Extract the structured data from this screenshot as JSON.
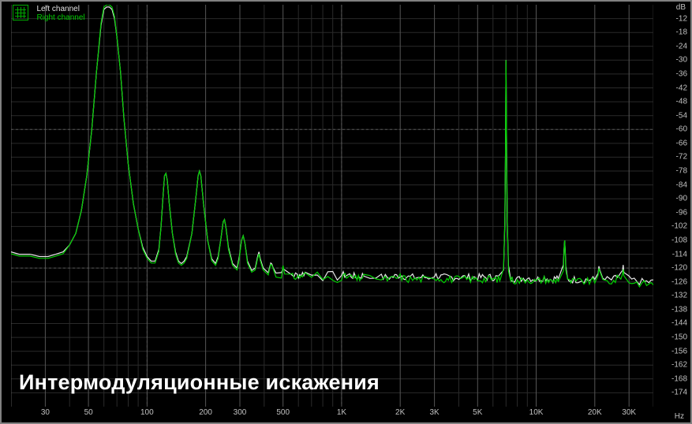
{
  "chart": {
    "type": "spectrum-line",
    "title_caption": "Интермодуляционные искажения",
    "background_color": "#000000",
    "border_color": "#808080",
    "grid_color_major": "#555555",
    "grid_color_minor": "#2a2a2a",
    "text_color": "#c0c0c0",
    "xaxis": {
      "unit": "Hz",
      "scale": "log",
      "min_hz": 20,
      "max_hz": 40000,
      "major_ticks": [
        20,
        30,
        50,
        100,
        200,
        300,
        500,
        1000,
        2000,
        3000,
        5000,
        10000,
        20000,
        30000
      ],
      "tick_labels": [
        "",
        "30",
        "50",
        "100",
        "200",
        "300",
        "500",
        "1K",
        "2K",
        "3K",
        "5K",
        "10K",
        "20K",
        "30K"
      ]
    },
    "yaxis": {
      "unit": "dB",
      "scale": "linear",
      "min_db": -180,
      "max_db": -6,
      "ticks": [
        -12,
        -18,
        -24,
        -30,
        -36,
        -42,
        -48,
        -54,
        -60,
        -66,
        -72,
        -78,
        -84,
        -90,
        -96,
        -102,
        -108,
        -114,
        -120,
        -126,
        -132,
        -138,
        -144,
        -150,
        -156,
        -162,
        -168,
        -174
      ]
    },
    "legend": {
      "left_label": "Left channel",
      "left_color": "#e0e0e0",
      "right_label": "Right channel",
      "right_color": "#00cc00"
    },
    "series": {
      "left_channel_color": "#e8e8e8",
      "right_channel_color": "#00d000",
      "line_width": 1.2,
      "points": [
        [
          20,
          -113
        ],
        [
          22,
          -114
        ],
        [
          25,
          -114
        ],
        [
          28,
          -115
        ],
        [
          31,
          -115
        ],
        [
          34,
          -114
        ],
        [
          37,
          -113
        ],
        [
          40,
          -110
        ],
        [
          43,
          -105
        ],
        [
          46,
          -95
        ],
        [
          49,
          -80
        ],
        [
          52,
          -60
        ],
        [
          55,
          -35
        ],
        [
          58,
          -15
        ],
        [
          60,
          -8
        ],
        [
          62,
          -7
        ],
        [
          64,
          -7
        ],
        [
          66,
          -8
        ],
        [
          68,
          -12
        ],
        [
          70,
          -20
        ],
        [
          73,
          -35
        ],
        [
          76,
          -55
        ],
        [
          80,
          -75
        ],
        [
          85,
          -92
        ],
        [
          90,
          -103
        ],
        [
          95,
          -111
        ],
        [
          100,
          -115
        ],
        [
          105,
          -117
        ],
        [
          110,
          -117
        ],
        [
          115,
          -112
        ],
        [
          118,
          -102
        ],
        [
          121,
          -88
        ],
        [
          123,
          -80
        ],
        [
          125,
          -79
        ],
        [
          127,
          -82
        ],
        [
          130,
          -92
        ],
        [
          135,
          -105
        ],
        [
          140,
          -113
        ],
        [
          145,
          -117
        ],
        [
          150,
          -118
        ],
        [
          155,
          -117
        ],
        [
          160,
          -115
        ],
        [
          170,
          -105
        ],
        [
          178,
          -90
        ],
        [
          183,
          -80
        ],
        [
          186,
          -78
        ],
        [
          189,
          -80
        ],
        [
          195,
          -92
        ],
        [
          205,
          -108
        ],
        [
          215,
          -116
        ],
        [
          225,
          -118
        ],
        [
          232,
          -115
        ],
        [
          240,
          -107
        ],
        [
          246,
          -100
        ],
        [
          250,
          -99
        ],
        [
          254,
          -102
        ],
        [
          262,
          -111
        ],
        [
          275,
          -118
        ],
        [
          290,
          -120
        ],
        [
          298,
          -115
        ],
        [
          306,
          -108
        ],
        [
          312,
          -106
        ],
        [
          318,
          -109
        ],
        [
          328,
          -117
        ],
        [
          345,
          -121
        ],
        [
          360,
          -120
        ],
        [
          370,
          -115
        ],
        [
          376,
          -113
        ],
        [
          382,
          -116
        ],
        [
          395,
          -120
        ],
        [
          420,
          -122
        ],
        [
          432,
          -118
        ],
        [
          438,
          -117
        ],
        [
          444,
          -119
        ],
        [
          460,
          -122
        ],
        [
          490,
          -122
        ],
        [
          500,
          -119
        ],
        [
          510,
          -122
        ],
        [
          550,
          -123
        ],
        [
          600,
          -123
        ],
        [
          650,
          -122
        ],
        [
          700,
          -123
        ],
        [
          750,
          -122
        ],
        [
          800,
          -124
        ],
        [
          850,
          -123
        ],
        [
          900,
          -123
        ],
        [
          950,
          -124
        ],
        [
          1000,
          -123
        ],
        [
          1100,
          -123
        ],
        [
          1200,
          -124
        ],
        [
          1300,
          -123
        ],
        [
          1400,
          -124
        ],
        [
          1500,
          -123
        ],
        [
          1600,
          -124
        ],
        [
          1800,
          -124
        ],
        [
          2000,
          -123
        ],
        [
          2200,
          -124
        ],
        [
          2500,
          -124
        ],
        [
          2800,
          -124
        ],
        [
          3000,
          -123
        ],
        [
          3300,
          -124
        ],
        [
          3600,
          -124
        ],
        [
          4000,
          -124
        ],
        [
          4500,
          -124
        ],
        [
          5000,
          -124
        ],
        [
          5500,
          -124
        ],
        [
          6000,
          -124
        ],
        [
          6500,
          -124
        ],
        [
          6800,
          -120
        ],
        [
          6900,
          -100
        ],
        [
          6950,
          -70
        ],
        [
          6980,
          -45
        ],
        [
          7000,
          -30
        ],
        [
          7020,
          -45
        ],
        [
          7050,
          -70
        ],
        [
          7100,
          -100
        ],
        [
          7200,
          -120
        ],
        [
          7400,
          -124
        ],
        [
          8000,
          -125
        ],
        [
          9000,
          -124
        ],
        [
          10000,
          -125
        ],
        [
          11000,
          -124
        ],
        [
          12000,
          -125
        ],
        [
          13000,
          -124
        ],
        [
          13800,
          -120
        ],
        [
          13900,
          -112
        ],
        [
          14000,
          -108
        ],
        [
          14100,
          -112
        ],
        [
          14200,
          -120
        ],
        [
          14500,
          -125
        ],
        [
          16000,
          -125
        ],
        [
          18000,
          -125
        ],
        [
          20000,
          -125
        ],
        [
          20800,
          -122
        ],
        [
          21000,
          -118
        ],
        [
          21200,
          -122
        ],
        [
          22000,
          -125
        ],
        [
          25000,
          -125
        ],
        [
          27800,
          -122
        ],
        [
          28000,
          -120
        ],
        [
          28200,
          -122
        ],
        [
          30000,
          -125
        ],
        [
          35000,
          -126
        ],
        [
          40000,
          -126
        ]
      ],
      "right_offset_max": 2.5
    }
  }
}
